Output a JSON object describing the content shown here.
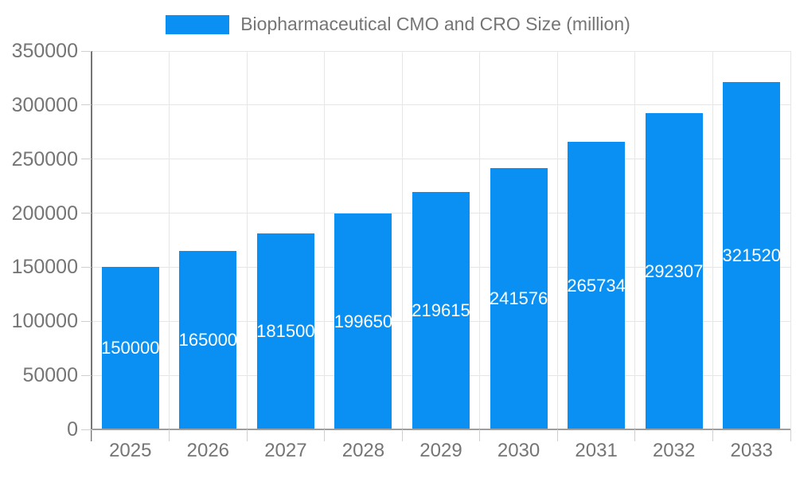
{
  "chart_data": {
    "type": "bar",
    "title": "Biopharmaceutical CMO and CRO Size (million)",
    "legend_position": "top",
    "legend": [
      {
        "label": "Biopharmaceutical CMO and CRO Size (million)",
        "color": "#0A90F2"
      }
    ],
    "categories": [
      "2025",
      "2026",
      "2027",
      "2028",
      "2029",
      "2030",
      "2031",
      "2032",
      "2033"
    ],
    "series": [
      {
        "name": "Biopharmaceutical CMO and CRO Size (million)",
        "values": [
          150000,
          165000,
          181500,
          199650,
          219615,
          241576,
          265734,
          292307,
          321520
        ]
      }
    ],
    "data_labels": [
      "150000",
      "165000",
      "181500",
      "199650",
      "219615",
      "241576",
      "265734",
      "292307",
      "321520"
    ],
    "xlabel": "",
    "ylabel": "",
    "ylim": [
      0,
      350000
    ],
    "ytick_step": 50000,
    "yticks": [
      "0",
      "50000",
      "100000",
      "150000",
      "200000",
      "250000",
      "300000",
      "350000"
    ],
    "grid": true
  },
  "colors": {
    "bar": "#0A90F2",
    "axis_text": "#757575",
    "gridline": "#e6e6e6",
    "tick": "#cfcfcf",
    "x_axis_line": "#9e9e9e",
    "y_axis_line": "#757575",
    "data_label": "#ffffff",
    "background": "#ffffff"
  }
}
